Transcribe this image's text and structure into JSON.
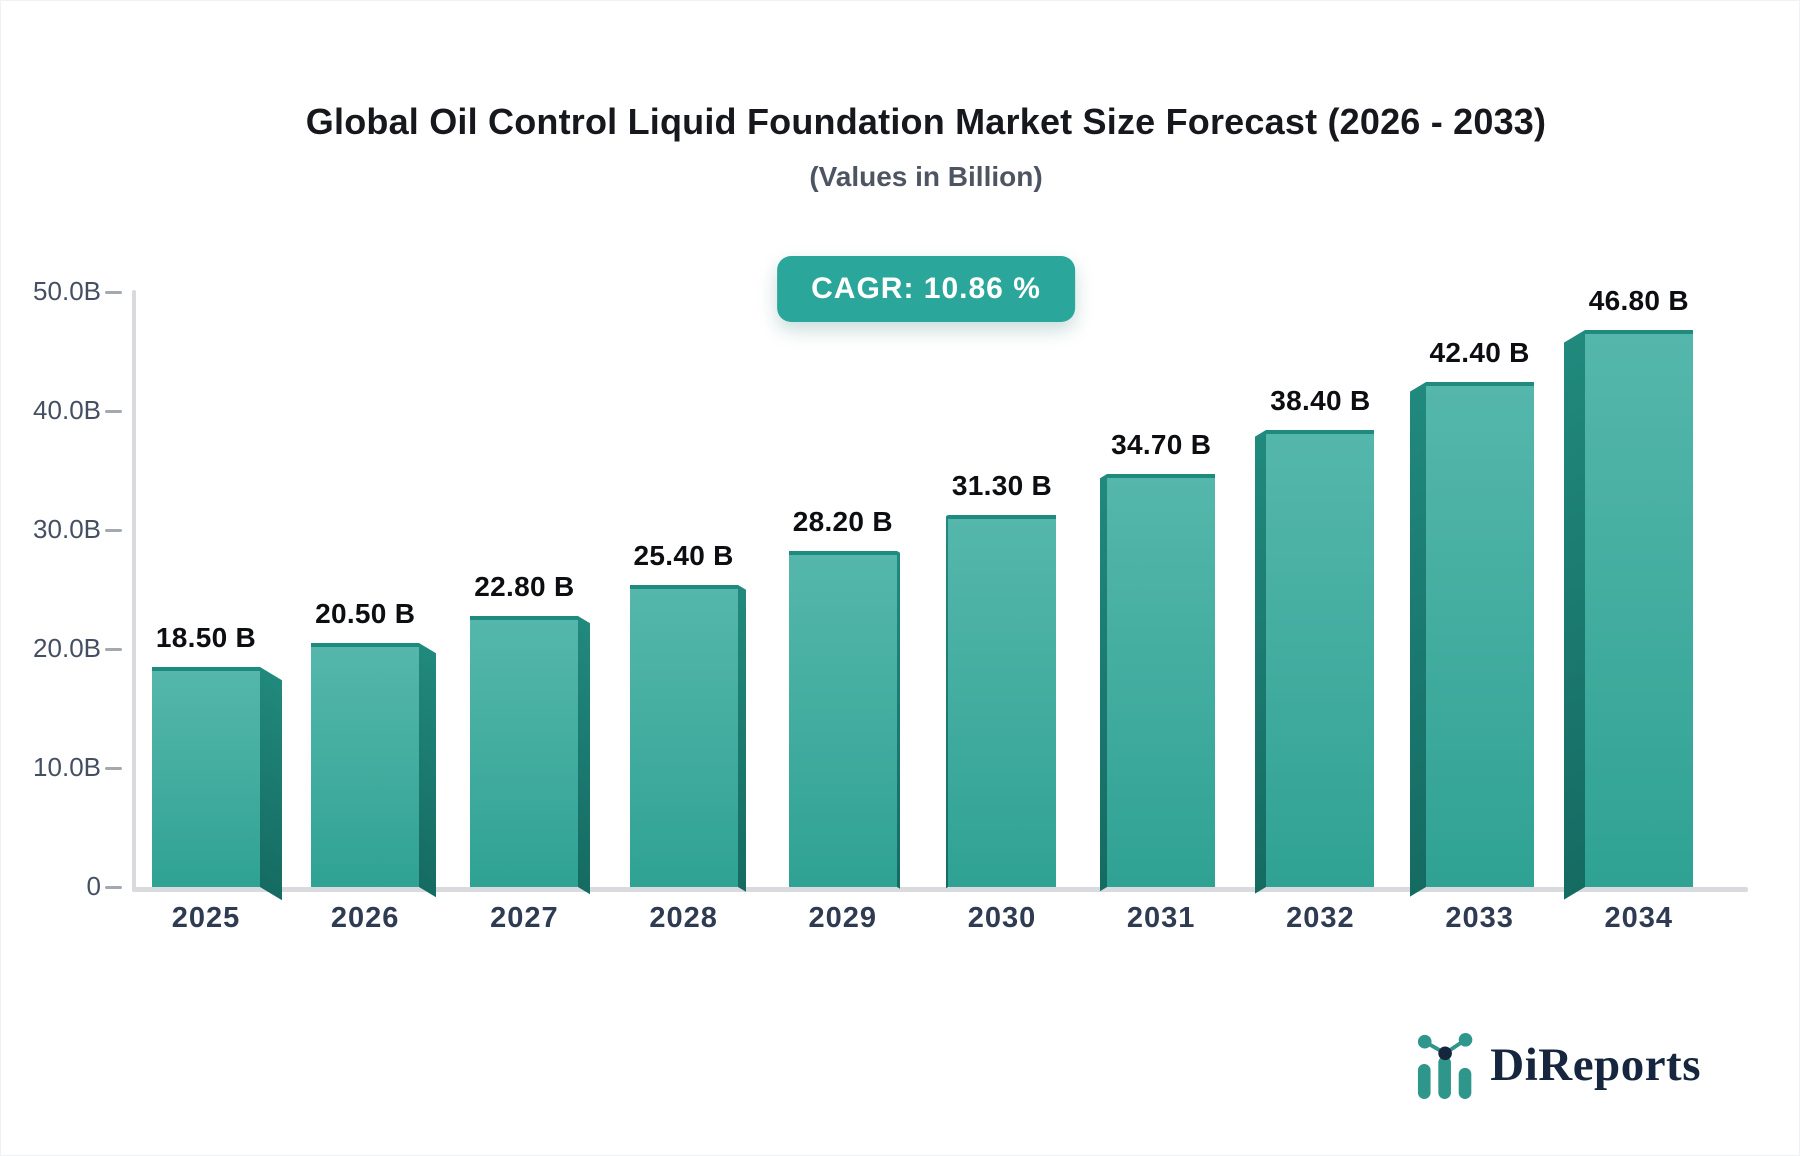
{
  "title": "Global Oil Control Liquid Foundation Market Size Forecast (2026 - 2033)",
  "subtitle": "(Values in Billion)",
  "cagr_label": "CAGR: 10.86 %",
  "logo": {
    "text": "DiReports",
    "icon": "mini-bar-chart-with-trend-dots-icon"
  },
  "colors": {
    "badge_bg": "#2ba69a",
    "bar_top": "#55b7ab",
    "bar_bottom": "#2fa294",
    "bar_edge": "#1f8b7e",
    "bar_side_top": "#21897d",
    "bar_side_bottom": "#156b62",
    "axis": "#d8dade",
    "navy": "#16263e",
    "logo_teal": "#2f968b"
  },
  "chart_data": {
    "type": "bar",
    "title": "Global Oil Control Liquid Foundation Market Size Forecast (2026 - 2033)",
    "subtitle": "(Values in Billion)",
    "cagr": "10.86 %",
    "categories": [
      "2025",
      "2026",
      "2027",
      "2028",
      "2029",
      "2030",
      "2031",
      "2032",
      "2033",
      "2034"
    ],
    "values": [
      18.5,
      20.5,
      22.8,
      25.4,
      28.2,
      31.3,
      34.7,
      38.4,
      42.4,
      46.8
    ],
    "value_labels": [
      "18.50 B",
      "20.50 B",
      "22.80 B",
      "25.40 B",
      "28.20 B",
      "31.30 B",
      "34.70 B",
      "38.40 B",
      "42.40 B",
      "46.80 B"
    ],
    "y_ticks": [
      "50.0B",
      "40.0B",
      "30.0B",
      "20.0B",
      "10.0B",
      "0"
    ],
    "ylim": [
      0,
      50
    ],
    "xlabel": "",
    "ylabel": "",
    "grid": false,
    "legend": false,
    "bar_style": "3d-perspective-teal-gradient"
  }
}
